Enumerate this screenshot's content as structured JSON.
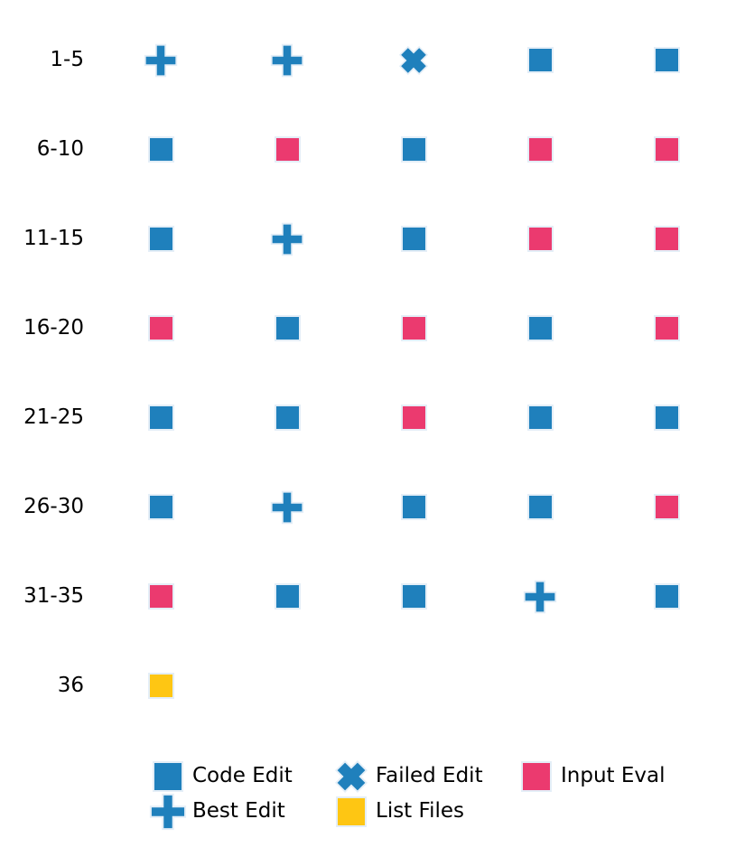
{
  "chart_data": {
    "type": "scatter",
    "title": "",
    "xlabel": "",
    "ylabel": "",
    "grid": false,
    "legend_position": "bottom",
    "columns_per_row": 5,
    "background_color": "#ffffff",
    "text_color": "#000000",
    "marker_edge_color": "#e4eef7",
    "markers": {
      "code_edit": {
        "shape": "square",
        "color": "#1f80bc",
        "label": "Code Edit"
      },
      "failed_edit": {
        "shape": "x",
        "color": "#1f80bc",
        "label": "Failed Edit"
      },
      "input_eval": {
        "shape": "square",
        "color": "#eb3a6f",
        "label": "Input Eval"
      },
      "best_edit": {
        "shape": "plus",
        "color": "#1f80bc",
        "label": "Best Edit"
      },
      "list_files": {
        "shape": "square",
        "color": "#fec613",
        "label": "List Files"
      }
    },
    "cells": [
      {
        "label": "1-5",
        "markers": [
          "best_edit",
          "best_edit",
          "failed_edit",
          "code_edit",
          "code_edit"
        ]
      },
      {
        "label": "6-10",
        "markers": [
          "code_edit",
          "input_eval",
          "code_edit",
          "input_eval",
          "input_eval"
        ]
      },
      {
        "label": "11-15",
        "markers": [
          "code_edit",
          "best_edit",
          "code_edit",
          "input_eval",
          "input_eval"
        ]
      },
      {
        "label": "16-20",
        "markers": [
          "input_eval",
          "code_edit",
          "input_eval",
          "code_edit",
          "input_eval"
        ]
      },
      {
        "label": "21-25",
        "markers": [
          "code_edit",
          "code_edit",
          "input_eval",
          "code_edit",
          "code_edit"
        ]
      },
      {
        "label": "26-30",
        "markers": [
          "code_edit",
          "best_edit",
          "code_edit",
          "code_edit",
          "input_eval"
        ]
      },
      {
        "label": "31-35",
        "markers": [
          "input_eval",
          "code_edit",
          "code_edit",
          "best_edit",
          "code_edit"
        ]
      },
      {
        "label": "36",
        "markers": [
          "list_files"
        ]
      }
    ],
    "legend": [
      {
        "key": "code_edit",
        "label": "Code Edit"
      },
      {
        "key": "failed_edit",
        "label": "Failed Edit"
      },
      {
        "key": "input_eval",
        "label": "Input Eval"
      },
      {
        "key": "best_edit",
        "label": "Best Edit"
      },
      {
        "key": "list_files",
        "label": "List Files"
      }
    ]
  }
}
